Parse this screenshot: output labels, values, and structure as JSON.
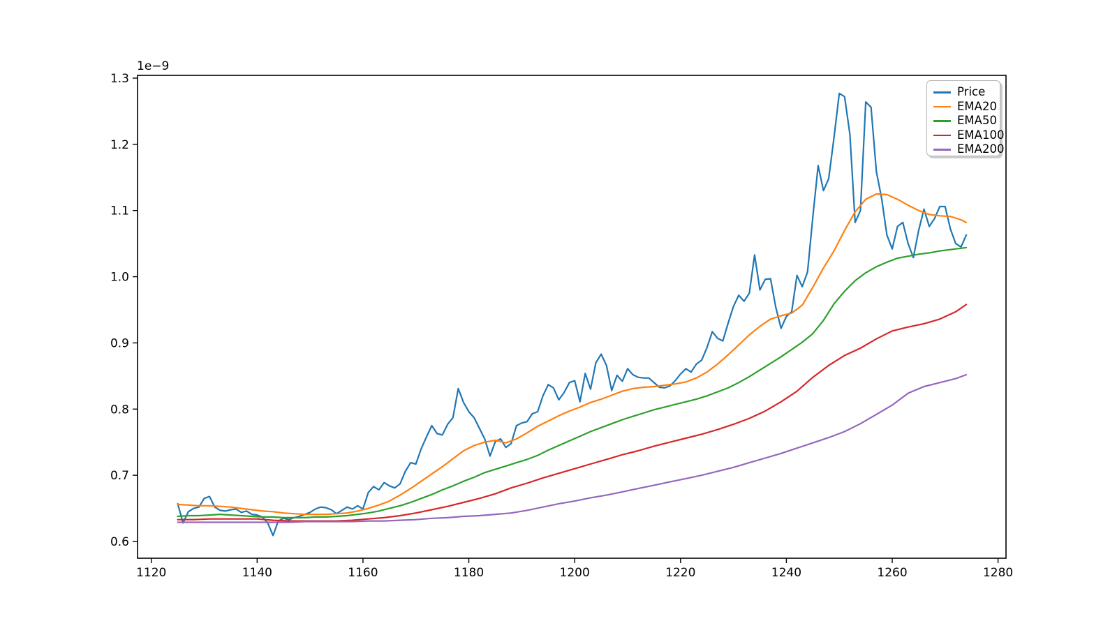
{
  "chart_data": {
    "type": "line",
    "title": "",
    "xlabel": "",
    "ylabel": "",
    "offset_label": "1e−9",
    "y_unit_multiplier": "1e-9",
    "grid": false,
    "legend_position": "upper right",
    "xlim": [
      1117.4,
      1281.5
    ],
    "ylim": [
      0.5747,
      1.3042
    ],
    "x_ticks": [
      1120,
      1140,
      1160,
      1180,
      1200,
      1220,
      1240,
      1260,
      1280
    ],
    "y_ticks": [
      "0.6",
      "0.7",
      "0.8",
      "0.9",
      "1.0",
      "1.1",
      "1.2",
      "1.3"
    ],
    "y_tick_values": [
      0.6,
      0.7,
      0.8,
      0.9,
      1.0,
      1.1,
      1.2,
      1.3
    ],
    "series": [
      {
        "name": "Price",
        "color": "#1f77b4",
        "x": [
          1125,
          1126,
          1127,
          1128,
          1129,
          1130,
          1131,
          1132,
          1133,
          1134,
          1135,
          1136,
          1137,
          1138,
          1139,
          1140,
          1141,
          1142,
          1143,
          1144,
          1145,
          1146,
          1147,
          1148,
          1149,
          1150,
          1151,
          1152,
          1153,
          1154,
          1155,
          1156,
          1157,
          1158,
          1159,
          1160,
          1161,
          1162,
          1163,
          1164,
          1165,
          1166,
          1167,
          1168,
          1169,
          1170,
          1171,
          1172,
          1173,
          1174,
          1175,
          1176,
          1177,
          1178,
          1179,
          1180,
          1181,
          1182,
          1183,
          1184,
          1185,
          1186,
          1187,
          1188,
          1189,
          1190,
          1191,
          1192,
          1193,
          1194,
          1195,
          1196,
          1197,
          1198,
          1199,
          1200,
          1201,
          1202,
          1203,
          1204,
          1205,
          1206,
          1207,
          1208,
          1209,
          1210,
          1211,
          1212,
          1213,
          1214,
          1215,
          1216,
          1217,
          1218,
          1219,
          1220,
          1221,
          1222,
          1223,
          1224,
          1225,
          1226,
          1227,
          1228,
          1229,
          1230,
          1231,
          1232,
          1233,
          1234,
          1235,
          1236,
          1237,
          1238,
          1239,
          1240,
          1241,
          1242,
          1243,
          1244,
          1245,
          1246,
          1247,
          1248,
          1249,
          1250,
          1251,
          1252,
          1253,
          1254,
          1255,
          1256,
          1257,
          1258,
          1259,
          1260,
          1261,
          1262,
          1263,
          1264,
          1265,
          1266,
          1267,
          1268,
          1269,
          1270,
          1271,
          1272,
          1273,
          1274
        ],
        "y": [
          0.657,
          0.628,
          0.645,
          0.65,
          0.652,
          0.665,
          0.668,
          0.652,
          0.647,
          0.646,
          0.648,
          0.649,
          0.644,
          0.646,
          0.641,
          0.64,
          0.637,
          0.628,
          0.609,
          0.631,
          0.635,
          0.633,
          0.636,
          0.638,
          0.641,
          0.644,
          0.649,
          0.652,
          0.651,
          0.648,
          0.642,
          0.647,
          0.652,
          0.649,
          0.654,
          0.649,
          0.674,
          0.683,
          0.678,
          0.689,
          0.684,
          0.681,
          0.687,
          0.706,
          0.719,
          0.717,
          0.74,
          0.758,
          0.775,
          0.763,
          0.761,
          0.777,
          0.787,
          0.831,
          0.81,
          0.796,
          0.787,
          0.771,
          0.755,
          0.729,
          0.751,
          0.755,
          0.742,
          0.748,
          0.775,
          0.779,
          0.781,
          0.793,
          0.796,
          0.82,
          0.837,
          0.832,
          0.814,
          0.825,
          0.84,
          0.843,
          0.811,
          0.854,
          0.83,
          0.87,
          0.883,
          0.866,
          0.828,
          0.851,
          0.842,
          0.861,
          0.852,
          0.848,
          0.847,
          0.847,
          0.84,
          0.833,
          0.832,
          0.835,
          0.843,
          0.853,
          0.861,
          0.856,
          0.868,
          0.874,
          0.893,
          0.917,
          0.907,
          0.903,
          0.93,
          0.955,
          0.972,
          0.963,
          0.975,
          1.033,
          0.98,
          0.996,
          0.997,
          0.954,
          0.922,
          0.94,
          0.947,
          1.002,
          0.985,
          1.007,
          1.09,
          1.168,
          1.13,
          1.148,
          1.21,
          1.277,
          1.272,
          1.215,
          1.082,
          1.1,
          1.264,
          1.256,
          1.159,
          1.118,
          1.063,
          1.042,
          1.076,
          1.082,
          1.05,
          1.029,
          1.07,
          1.102,
          1.076,
          1.088,
          1.106,
          1.106,
          1.072,
          1.05,
          1.045,
          1.063
        ]
      },
      {
        "name": "EMA20",
        "color": "#ff7f0e",
        "x": [
          1125,
          1127,
          1129,
          1131,
          1133,
          1135,
          1137,
          1139,
          1141,
          1143,
          1145,
          1147,
          1149,
          1151,
          1153,
          1155,
          1157,
          1159,
          1161,
          1163,
          1165,
          1167,
          1169,
          1171,
          1173,
          1175,
          1177,
          1179,
          1181,
          1183,
          1185,
          1187,
          1189,
          1191,
          1193,
          1195,
          1197,
          1199,
          1201,
          1203,
          1205,
          1207,
          1209,
          1211,
          1213,
          1215,
          1217,
          1219,
          1221,
          1223,
          1225,
          1227,
          1229,
          1231,
          1233,
          1235,
          1237,
          1239,
          1241,
          1243,
          1245,
          1247,
          1249,
          1251,
          1253,
          1255,
          1257,
          1259,
          1261,
          1263,
          1265,
          1267,
          1269,
          1271,
          1273,
          1274
        ],
        "y": [
          0.656,
          0.655,
          0.654,
          0.654,
          0.653,
          0.652,
          0.65,
          0.648,
          0.646,
          0.645,
          0.643,
          0.642,
          0.641,
          0.641,
          0.641,
          0.642,
          0.643,
          0.646,
          0.65,
          0.655,
          0.661,
          0.67,
          0.68,
          0.691,
          0.702,
          0.713,
          0.725,
          0.737,
          0.745,
          0.75,
          0.753,
          0.749,
          0.755,
          0.764,
          0.774,
          0.782,
          0.79,
          0.797,
          0.803,
          0.81,
          0.815,
          0.821,
          0.827,
          0.831,
          0.833,
          0.834,
          0.836,
          0.838,
          0.841,
          0.847,
          0.856,
          0.868,
          0.882,
          0.897,
          0.912,
          0.925,
          0.936,
          0.941,
          0.945,
          0.957,
          0.984,
          1.013,
          1.039,
          1.07,
          1.098,
          1.117,
          1.125,
          1.124,
          1.117,
          1.108,
          1.1,
          1.094,
          1.092,
          1.091,
          1.086,
          1.082
        ]
      },
      {
        "name": "EMA50",
        "color": "#2ca02c",
        "x": [
          1125,
          1127,
          1129,
          1131,
          1133,
          1135,
          1137,
          1139,
          1141,
          1143,
          1145,
          1147,
          1149,
          1151,
          1153,
          1155,
          1157,
          1159,
          1161,
          1163,
          1165,
          1167,
          1169,
          1171,
          1173,
          1175,
          1177,
          1179,
          1181,
          1183,
          1185,
          1187,
          1189,
          1191,
          1193,
          1195,
          1197,
          1199,
          1201,
          1203,
          1205,
          1207,
          1209,
          1211,
          1213,
          1215,
          1217,
          1219,
          1221,
          1223,
          1225,
          1227,
          1229,
          1231,
          1233,
          1235,
          1237,
          1239,
          1241,
          1243,
          1245,
          1247,
          1249,
          1251,
          1253,
          1255,
          1257,
          1259,
          1261,
          1263,
          1265,
          1267,
          1269,
          1271,
          1273,
          1274
        ],
        "y": [
          0.638,
          0.639,
          0.639,
          0.64,
          0.641,
          0.64,
          0.639,
          0.638,
          0.637,
          0.637,
          0.636,
          0.636,
          0.636,
          0.637,
          0.637,
          0.638,
          0.639,
          0.641,
          0.643,
          0.646,
          0.65,
          0.654,
          0.659,
          0.665,
          0.671,
          0.678,
          0.684,
          0.691,
          0.697,
          0.704,
          0.709,
          0.714,
          0.719,
          0.724,
          0.73,
          0.738,
          0.745,
          0.752,
          0.759,
          0.766,
          0.772,
          0.778,
          0.784,
          0.789,
          0.794,
          0.799,
          0.803,
          0.807,
          0.811,
          0.815,
          0.82,
          0.826,
          0.832,
          0.84,
          0.849,
          0.859,
          0.869,
          0.879,
          0.89,
          0.901,
          0.914,
          0.934,
          0.959,
          0.978,
          0.994,
          1.006,
          1.015,
          1.022,
          1.028,
          1.031,
          1.034,
          1.036,
          1.039,
          1.041,
          1.043,
          1.044
        ]
      },
      {
        "name": "EMA100",
        "color": "#d62728",
        "x": [
          1125,
          1128,
          1131,
          1134,
          1137,
          1140,
          1143,
          1146,
          1149,
          1152,
          1155,
          1158,
          1161,
          1164,
          1167,
          1170,
          1173,
          1176,
          1179,
          1182,
          1185,
          1188,
          1191,
          1194,
          1197,
          1200,
          1203,
          1206,
          1209,
          1212,
          1215,
          1218,
          1221,
          1224,
          1227,
          1230,
          1233,
          1236,
          1239,
          1242,
          1245,
          1248,
          1251,
          1254,
          1257,
          1260,
          1263,
          1266,
          1269,
          1272,
          1274
        ],
        "y": [
          0.633,
          0.633,
          0.634,
          0.634,
          0.634,
          0.634,
          0.632,
          0.631,
          0.631,
          0.631,
          0.631,
          0.632,
          0.634,
          0.636,
          0.639,
          0.643,
          0.648,
          0.653,
          0.659,
          0.665,
          0.672,
          0.681,
          0.688,
          0.696,
          0.703,
          0.71,
          0.717,
          0.724,
          0.731,
          0.737,
          0.744,
          0.75,
          0.756,
          0.762,
          0.769,
          0.777,
          0.786,
          0.797,
          0.811,
          0.827,
          0.848,
          0.866,
          0.881,
          0.892,
          0.906,
          0.918,
          0.924,
          0.929,
          0.936,
          0.947,
          0.958
        ]
      },
      {
        "name": "EMA200",
        "color": "#9467bd",
        "x": [
          1125,
          1128,
          1131,
          1134,
          1137,
          1140,
          1143,
          1146,
          1149,
          1152,
          1155,
          1158,
          1161,
          1164,
          1167,
          1170,
          1173,
          1176,
          1179,
          1182,
          1185,
          1188,
          1191,
          1194,
          1197,
          1200,
          1203,
          1206,
          1209,
          1212,
          1215,
          1218,
          1221,
          1224,
          1227,
          1230,
          1233,
          1236,
          1239,
          1242,
          1245,
          1248,
          1251,
          1254,
          1257,
          1260,
          1263,
          1266,
          1269,
          1272,
          1274
        ],
        "y": [
          0.629,
          0.629,
          0.629,
          0.629,
          0.629,
          0.629,
          0.629,
          0.629,
          0.63,
          0.63,
          0.63,
          0.63,
          0.631,
          0.631,
          0.632,
          0.633,
          0.635,
          0.636,
          0.638,
          0.639,
          0.641,
          0.643,
          0.647,
          0.652,
          0.657,
          0.661,
          0.666,
          0.67,
          0.675,
          0.68,
          0.685,
          0.69,
          0.695,
          0.7,
          0.706,
          0.712,
          0.719,
          0.726,
          0.733,
          0.741,
          0.749,
          0.757,
          0.766,
          0.778,
          0.792,
          0.806,
          0.824,
          0.834,
          0.84,
          0.846,
          0.852
        ]
      }
    ]
  },
  "legend": {
    "entries": [
      "Price",
      "EMA20",
      "EMA50",
      "EMA100",
      "EMA200"
    ]
  },
  "style": {
    "spine_color": "#000000",
    "tick_color": "#000000",
    "background": "#ffffff",
    "line_width": 2.2
  }
}
